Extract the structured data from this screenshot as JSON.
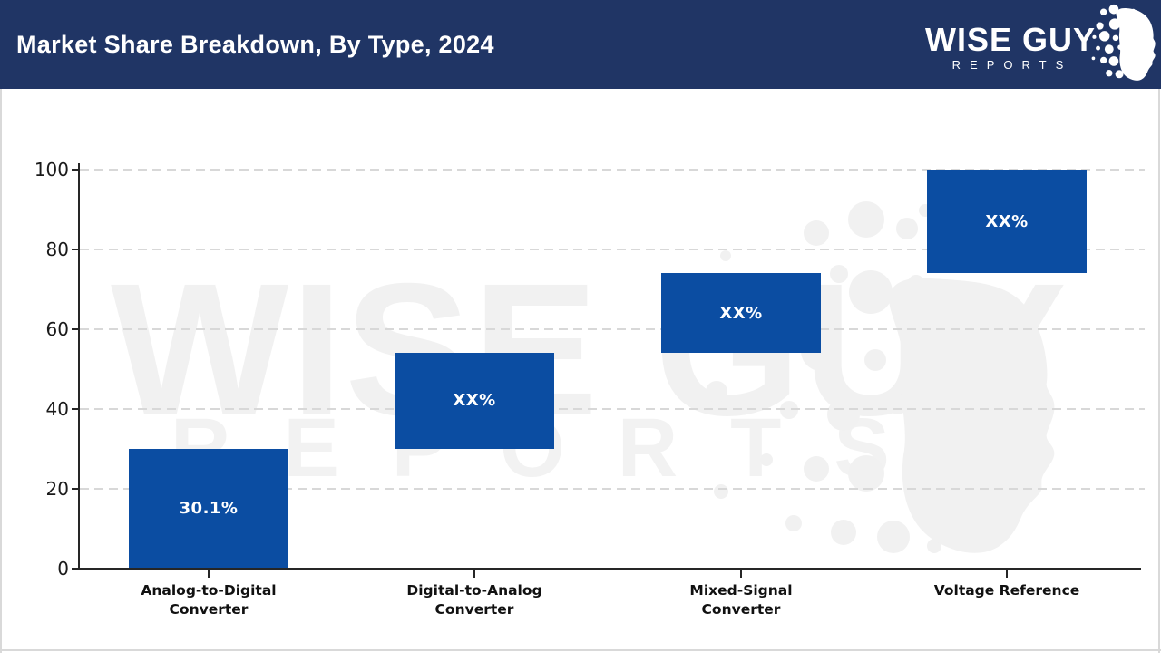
{
  "header": {
    "title": "Market Share Breakdown, By Type, 2024",
    "brand": {
      "line1": "WISE GUY",
      "line2": "REPORTS"
    }
  },
  "watermark": {
    "line1": "WISE GUY",
    "line2": "REPORTS"
  },
  "colors": {
    "header_bg": "#203565",
    "bar": "#0b4da2",
    "axis": "#262626",
    "grid": "#d8d8d8",
    "text": "#111111",
    "bar_label": "#ffffff",
    "watermark": "#f1f1f1",
    "border": "#d9d9d9"
  },
  "chart_data": {
    "type": "bar",
    "subtype": "waterfall",
    "title": "Market Share Breakdown, By Type, 2024",
    "categories": [
      "Analog-to-Digital Converter",
      "Digital-to-Analog Converter",
      "Mixed-Signal Converter",
      "Voltage Reference"
    ],
    "segments": [
      {
        "category": "Analog-to-Digital Converter",
        "label_lines": [
          "Analog-to-Digital",
          "Converter"
        ],
        "start": 0,
        "end": 30.1,
        "label": "30.1%"
      },
      {
        "category": "Digital-to-Analog Converter",
        "label_lines": [
          "Digital-to-Analog",
          "Converter"
        ],
        "start": 30.1,
        "end": 54,
        "label": "XX%"
      },
      {
        "category": "Mixed-Signal Converter",
        "label_lines": [
          "Mixed-Signal",
          "Converter"
        ],
        "start": 54,
        "end": 74,
        "label": "XX%"
      },
      {
        "category": "Voltage Reference",
        "label_lines": [
          "Voltage Reference"
        ],
        "start": 74,
        "end": 100,
        "label": "XX%"
      }
    ],
    "ylim": [
      0,
      100
    ],
    "yticks": [
      0,
      20,
      40,
      60,
      80,
      100
    ],
    "xlabel": "",
    "ylabel": "",
    "grid": "dashed-horizontal",
    "legend": "none"
  }
}
